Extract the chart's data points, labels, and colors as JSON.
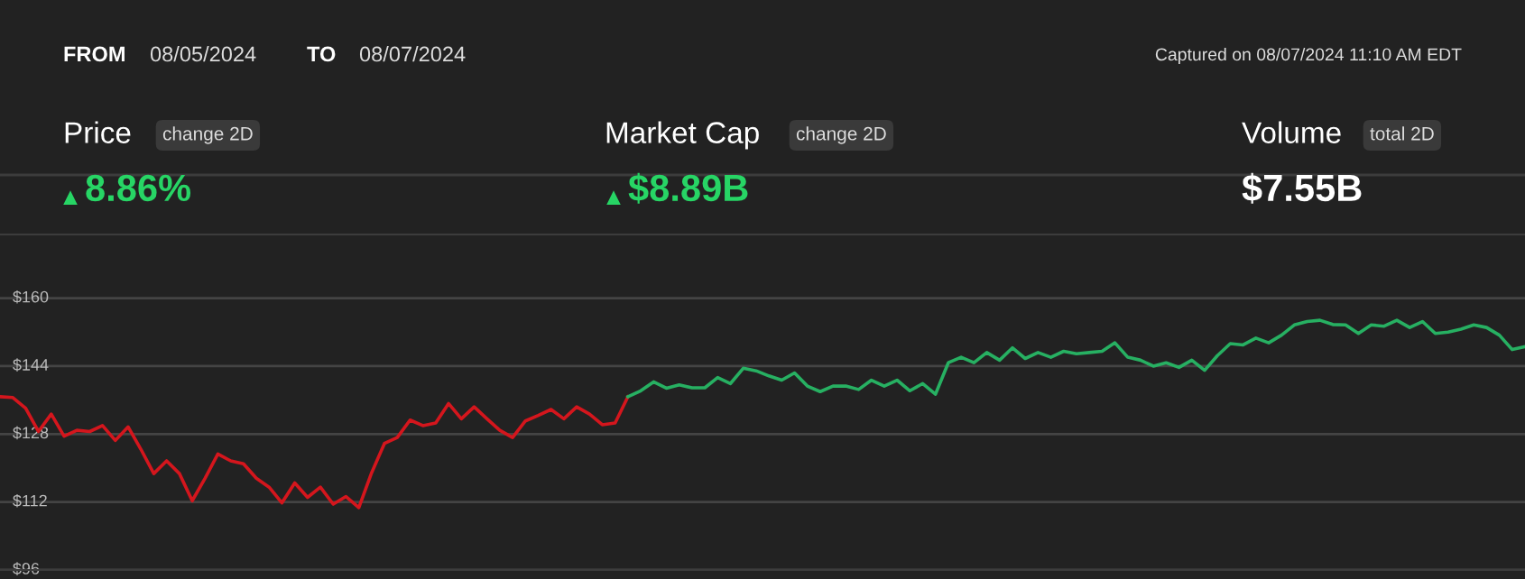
{
  "chart_data": {
    "type": "line",
    "categories": [
      null,
      null,
      null,
      null,
      null,
      null,
      null,
      null,
      null,
      null,
      null,
      null,
      null,
      null,
      null,
      null,
      null,
      null,
      null,
      null,
      null,
      null,
      null,
      null,
      null,
      null,
      null,
      null,
      null,
      null,
      null,
      null,
      null,
      null,
      null,
      null,
      null,
      null,
      null,
      null,
      null,
      null,
      null,
      null,
      null,
      null,
      null,
      null,
      null,
      null,
      null,
      null,
      null,
      null,
      null,
      null,
      null,
      null,
      null,
      null,
      null,
      null,
      null,
      null,
      null,
      null,
      null,
      null,
      null,
      null,
      null,
      null,
      null,
      null,
      null,
      null,
      null,
      null,
      null,
      null,
      null,
      null,
      null,
      null,
      null,
      null,
      null,
      null,
      null,
      null,
      null,
      null,
      null,
      null,
      null,
      null,
      null,
      null,
      null,
      null,
      null,
      null,
      null,
      null,
      null,
      null,
      null,
      null,
      null,
      null,
      null,
      null,
      null,
      null,
      null,
      null,
      null,
      null,
      null,
      null
    ],
    "series": [
      {
        "color": "#d4161d",
        "values": [
          136.8,
          136.6,
          134.1,
          128.6,
          132.7,
          127.5,
          128.9,
          128.6,
          130.0,
          126.5,
          129.7,
          124.4,
          118.7,
          121.7,
          118.7,
          112.3,
          117.6,
          123.3,
          121.7,
          121.0,
          117.6,
          115.5,
          111.8,
          116.5,
          113.1,
          115.5,
          111.5,
          113.3,
          110.7,
          118.9,
          125.8,
          127.2,
          131.3,
          130.0,
          130.6,
          135.2,
          131.6,
          134.4,
          131.6,
          128.9,
          127.2,
          131.1,
          132.4,
          133.8,
          131.6,
          134.4,
          132.7,
          130.2,
          130.6,
          136.8,
          null,
          null,
          null,
          null,
          null,
          null,
          null,
          null,
          null,
          null,
          null,
          null,
          null,
          null,
          null,
          null,
          null,
          null,
          null,
          null,
          null,
          null,
          null,
          null,
          null,
          null,
          null,
          null,
          null,
          null,
          null,
          null,
          null,
          null,
          null,
          null,
          null,
          null,
          null,
          null,
          null,
          null,
          null,
          null,
          null,
          null,
          null,
          null,
          null,
          null,
          null,
          null,
          null,
          null,
          null,
          null,
          null,
          null,
          null,
          null,
          null,
          null,
          null,
          null,
          null,
          null,
          null,
          null,
          null,
          null
        ]
      },
      {
        "color": "#27b062",
        "values": [
          null,
          null,
          null,
          null,
          null,
          null,
          null,
          null,
          null,
          null,
          null,
          null,
          null,
          null,
          null,
          null,
          null,
          null,
          null,
          null,
          null,
          null,
          null,
          null,
          null,
          null,
          null,
          null,
          null,
          null,
          null,
          null,
          null,
          null,
          null,
          null,
          null,
          null,
          null,
          null,
          null,
          null,
          null,
          null,
          null,
          null,
          null,
          null,
          null,
          136.8,
          138.2,
          140.3,
          138.8,
          139.6,
          138.9,
          138.9,
          141.3,
          139.9,
          143.5,
          142.9,
          141.7,
          140.7,
          142.4,
          139.3,
          138.0,
          139.3,
          139.3,
          138.5,
          140.7,
          139.3,
          140.7,
          138.2,
          139.9,
          137.4,
          144.8,
          146.1,
          144.8,
          147.2,
          145.4,
          148.3,
          145.8,
          147.2,
          146.1,
          147.5,
          146.9,
          147.2,
          147.5,
          149.5,
          146.1,
          145.4,
          144.0,
          144.8,
          143.7,
          145.4,
          143.0,
          146.5,
          149.3,
          149.0,
          150.6,
          149.5,
          151.3,
          153.7,
          154.5,
          154.8,
          153.8,
          153.7,
          151.7,
          153.7,
          153.4,
          154.8,
          153.1,
          154.5,
          151.7,
          152.0,
          152.7,
          153.7,
          153.1,
          151.3,
          147.9,
          148.6
        ]
      }
    ],
    "ylim": [
      96,
      175
    ],
    "yticks": [
      {
        "value": 96,
        "label": "$96"
      },
      {
        "value": 112,
        "label": "$112"
      },
      {
        "value": 128,
        "label": "$128"
      },
      {
        "value": 144,
        "label": "$144"
      },
      {
        "value": 160,
        "label": "$160"
      }
    ],
    "grid": "y",
    "tick_labels": "y",
    "annotations": [
      "FROM",
      "08/05/2024",
      "TO",
      "08/07/2024",
      "Captured on 08/07/2024 11:10 AM EDT",
      "Price",
      "change 2D",
      "8.86%",
      "Market Cap",
      "change 2D",
      "$8.89B",
      "Volume",
      "total 2D",
      "$7.55B"
    ]
  }
}
